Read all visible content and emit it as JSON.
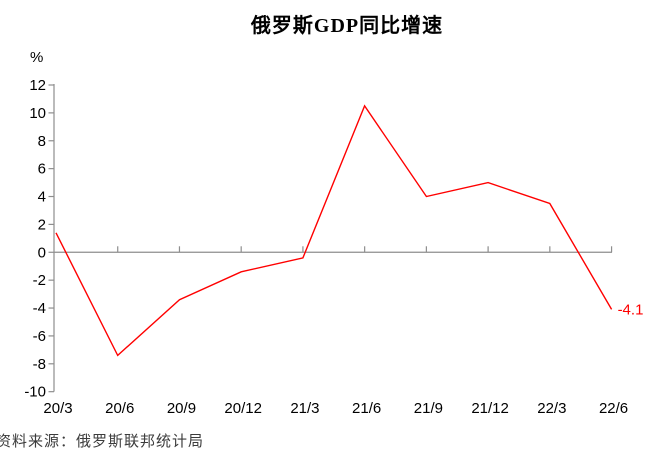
{
  "chart": {
    "title": "俄罗斯GDP同比增速",
    "unit_label": "%",
    "source": "资料来源：俄罗斯联邦统计局"
  },
  "chart_data": {
    "type": "line",
    "title": "俄罗斯GDP同比增速",
    "categories": [
      "20/3",
      "20/6",
      "20/9",
      "20/12",
      "21/3",
      "21/6",
      "21/9",
      "21/12",
      "22/3",
      "22/6"
    ],
    "series": [
      {
        "name": "俄罗斯GDP同比增速",
        "values": [
          1.4,
          -7.4,
          -3.4,
          -1.4,
          -0.4,
          10.5,
          4.0,
          5.0,
          3.5,
          -4.1
        ]
      }
    ],
    "xlabel": "",
    "ylabel": "%",
    "ylim": [
      -10,
      12
    ],
    "y_ticks": [
      12,
      10,
      8,
      6,
      4,
      2,
      0,
      -2,
      -4,
      -6,
      -8,
      -10
    ],
    "grid": false,
    "legend": "none",
    "line_color": "#ff0000",
    "axis_color": "#8e8e8e",
    "annotation": {
      "text": "-4.1",
      "value": -4.1,
      "color": "#ff0000"
    },
    "source": "资料来源：俄罗斯联邦统计局"
  }
}
